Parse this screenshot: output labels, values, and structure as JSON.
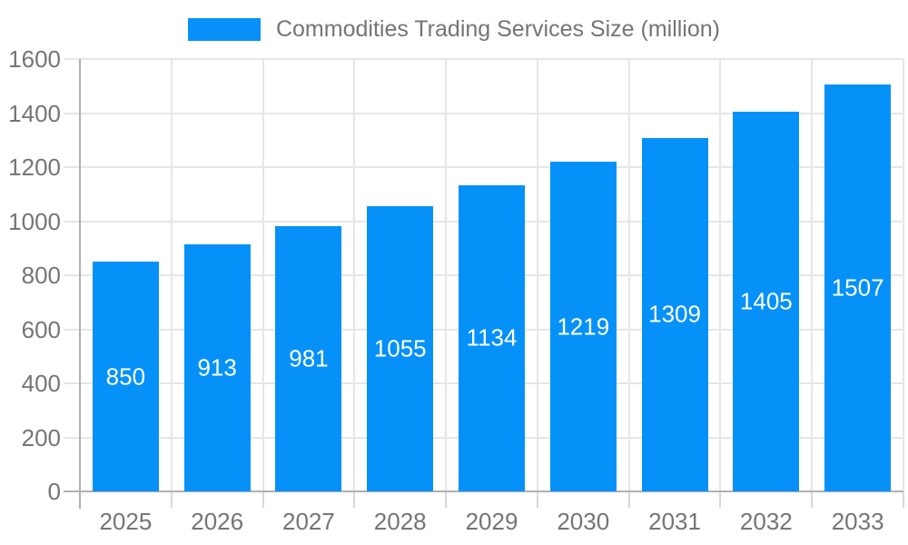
{
  "chart_data": {
    "type": "bar",
    "title": "Commodities Trading Services Size (million)",
    "categories": [
      "2025",
      "2026",
      "2027",
      "2028",
      "2029",
      "2030",
      "2031",
      "2032",
      "2033"
    ],
    "values": [
      850,
      913,
      981,
      1055,
      1134,
      1219,
      1309,
      1405,
      1507
    ],
    "xlabel": "",
    "ylabel": "",
    "ylim": [
      0,
      1600
    ],
    "yticks": [
      0,
      200,
      400,
      600,
      800,
      1000,
      1200,
      1400,
      1600
    ],
    "grid": true,
    "legend_position": "top-center",
    "bar_color": "#0591f8",
    "grid_color": "#e6e6e6",
    "axis_color": "#b0b0b0",
    "tick_color": "#d8d8d8",
    "label_color": "#757575",
    "value_label_color": "#ffffff"
  }
}
